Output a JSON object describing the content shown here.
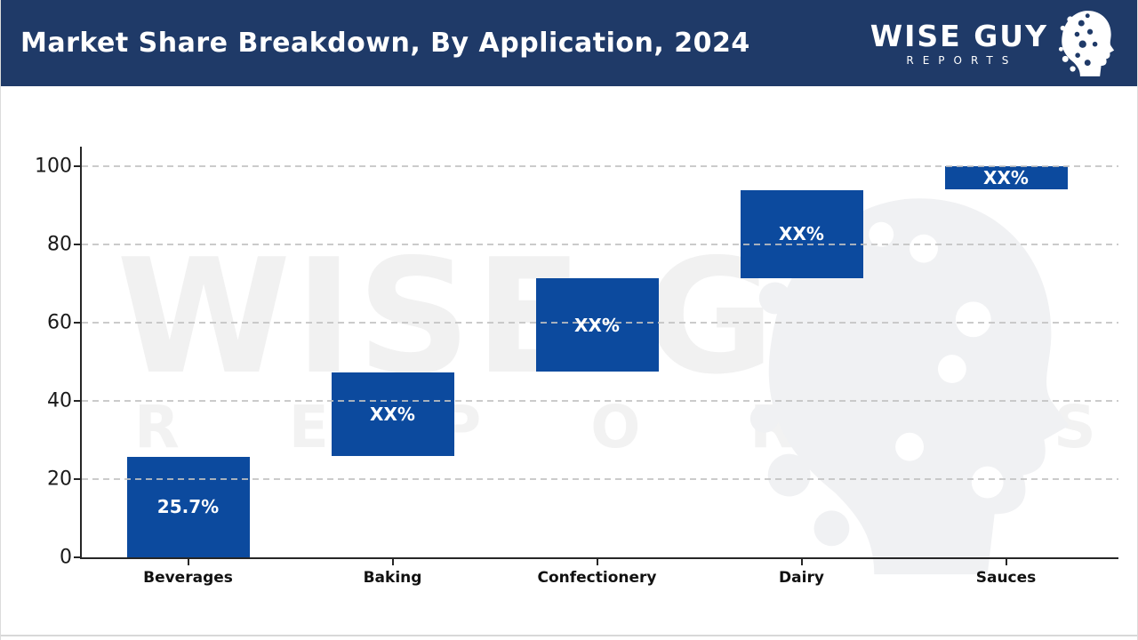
{
  "header": {
    "title": "Market Share Breakdown, By Application, 2024",
    "logo": {
      "line1": "WISE GUY",
      "line2": "REPORTS"
    }
  },
  "watermark": {
    "line1": "WISE GUY",
    "line2": "R E P O R T S"
  },
  "colors": {
    "header_bg": "#1f3a68",
    "bar": "#0c4a9e",
    "axis": "#262626",
    "grid": "#c2c2c2",
    "bar_label": "#ffffff",
    "watermark": "#f1f1f1"
  },
  "chart_data": {
    "type": "bar",
    "subtype": "waterfall",
    "title": "Market Share Breakdown, By Application, 2024",
    "categories": [
      "Beverages",
      "Baking",
      "Confectionery",
      "Dairy",
      "Sauces"
    ],
    "series": [
      {
        "name": "Beverages",
        "start": 0,
        "end": 25.7,
        "label": "25.7%"
      },
      {
        "name": "Baking",
        "start": 25.9,
        "end": 47.3,
        "label": "XX%"
      },
      {
        "name": "Confectionery",
        "start": 47.5,
        "end": 71.3,
        "label": "XX%"
      },
      {
        "name": "Dairy",
        "start": 71.4,
        "end": 93.9,
        "label": "XX%"
      },
      {
        "name": "Sauces",
        "start": 94.1,
        "end": 100,
        "label": "XX%"
      }
    ],
    "yticks": [
      0,
      20,
      40,
      60,
      80,
      100
    ],
    "ylim": [
      0,
      105
    ],
    "xlabel": "",
    "ylabel": "",
    "grid": "dashed-horizontal",
    "legend": "none",
    "bar_label_color": "#ffffff"
  }
}
